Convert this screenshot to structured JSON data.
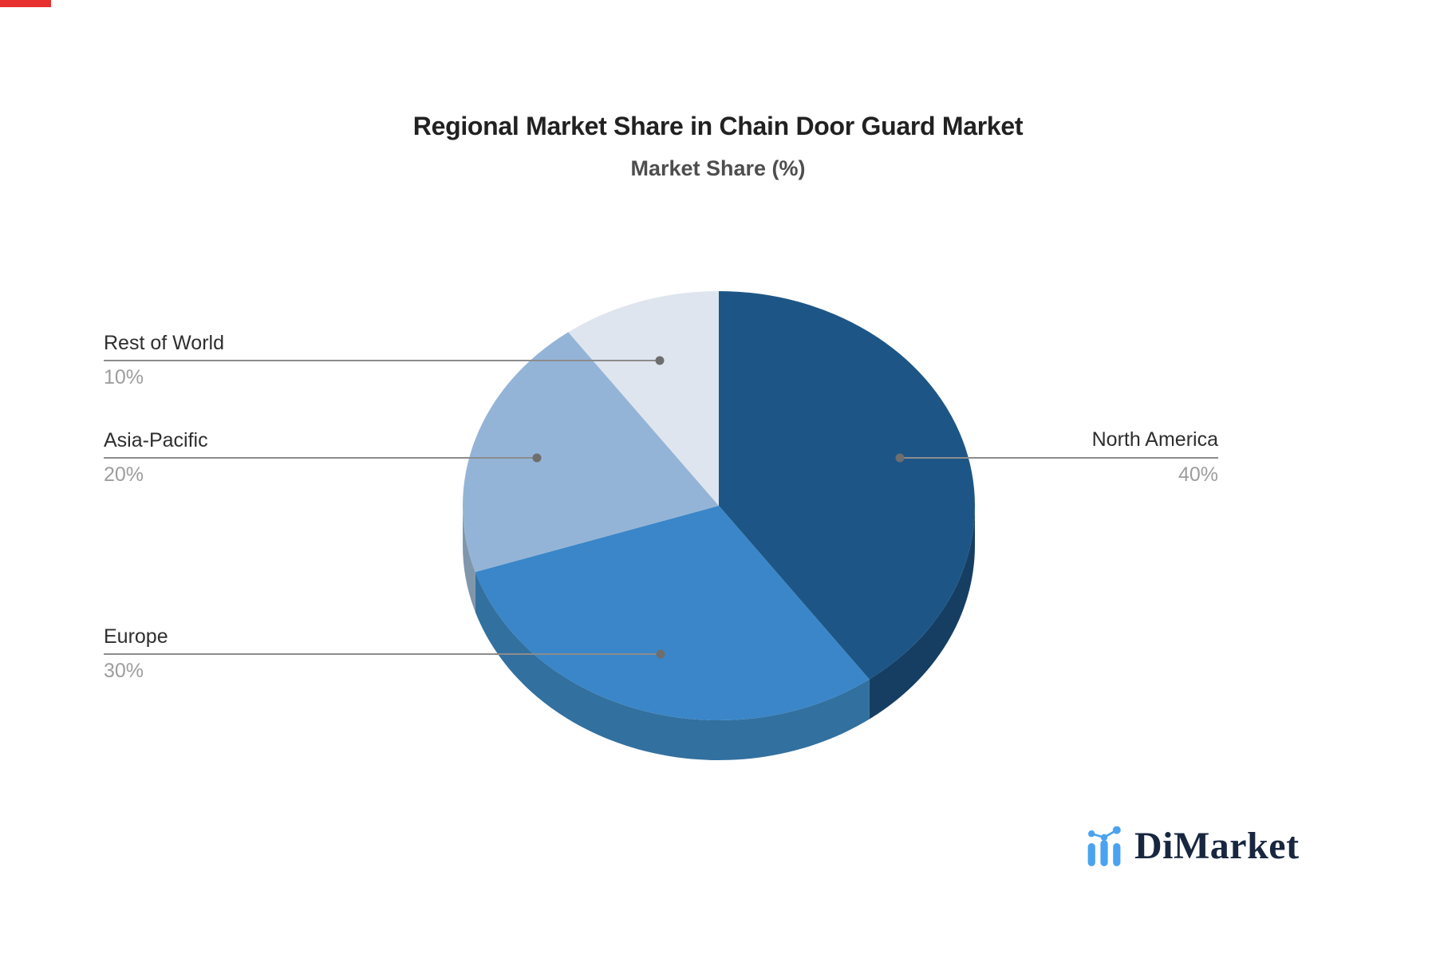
{
  "chart_data": {
    "type": "pie",
    "title": "Regional Market Share in Chain Door Guard Market",
    "subtitle": "Market Share (%)",
    "unit": "%",
    "style": "3d-pie",
    "start_angle_deg": 0,
    "clockwise": true,
    "legend_position": "none",
    "slices": [
      {
        "label": "North America",
        "value": 40,
        "pct_label": "40%",
        "color": "#1d5686",
        "side_color": "#163e63",
        "label_side": "right"
      },
      {
        "label": "Europe",
        "value": 30,
        "pct_label": "30%",
        "color": "#3a86c8",
        "side_color": "#32709f",
        "label_side": "left"
      },
      {
        "label": "Asia-Pacific",
        "value": 20,
        "pct_label": "20%",
        "color": "#94b4d7",
        "side_color": "#8096ab",
        "label_side": "left"
      },
      {
        "label": "Rest of World",
        "value": 10,
        "pct_label": "10%",
        "color": "#dfe5ee",
        "side_color": "#c2c9d6",
        "label_side": "left"
      }
    ],
    "leader_line_color": "#8c8c8c",
    "leader_dot_color": "#6e6e6e"
  },
  "decorations": {
    "top_left_marker_color": "#e8312e"
  },
  "logo": {
    "text": "DiMarket",
    "icon": "bar-chart-logo-icon",
    "text_color": "#18273f",
    "icon_color": "#4aa3f0"
  }
}
